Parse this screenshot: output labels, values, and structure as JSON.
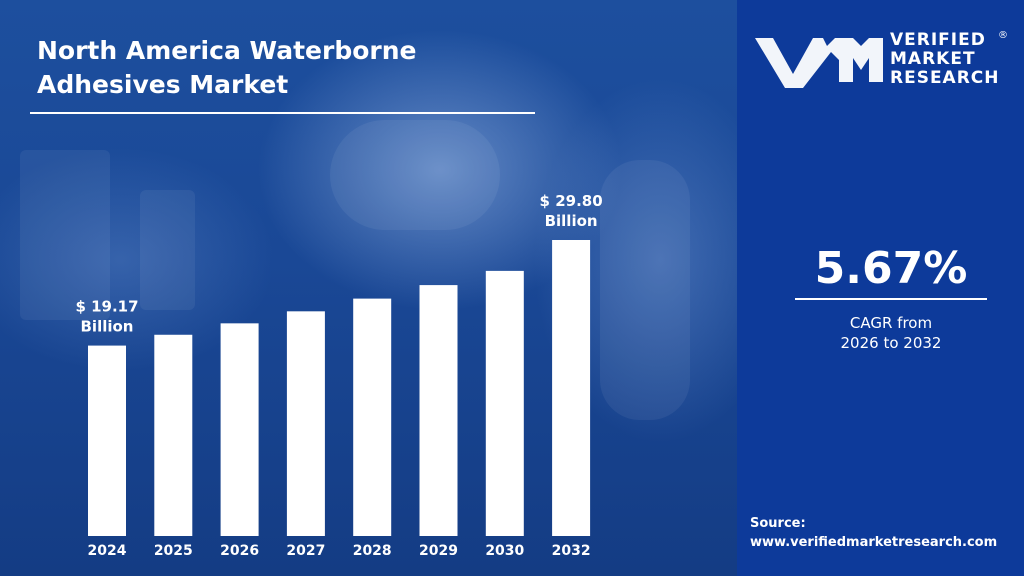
{
  "header": {
    "title": "North America Waterborne Adhesives Market"
  },
  "brand": {
    "line1": "VERIFIED",
    "line2": "MARKET",
    "line3": "RESEARCH",
    "registered": "®"
  },
  "cagr": {
    "value": "5.67%",
    "label_line1": "CAGR from",
    "label_line2": "2026 to 2032"
  },
  "source": {
    "label": "Source:",
    "url": "www.verifiedmarketresearch.com"
  },
  "colors": {
    "background_left": "#1a4896",
    "background_right": "#0d3a9a",
    "bars": "#ffffff",
    "text": "#ffffff"
  },
  "chart_data": {
    "type": "bar",
    "title": "North America Waterborne Adhesives Market",
    "categories": [
      "2024",
      "2025",
      "2026",
      "2027",
      "2028",
      "2029",
      "2030",
      "2032"
    ],
    "values": [
      19.17,
      20.26,
      21.41,
      22.62,
      23.9,
      25.26,
      26.69,
      29.8
    ],
    "data_labels": [
      {
        "index": 0,
        "line1": "$ 19.17",
        "line2": "Billion"
      },
      {
        "index": 7,
        "line1": "$ 29.80",
        "line2": "Billion"
      }
    ],
    "unit": "USD Billion",
    "grid": false,
    "legend": "none"
  }
}
